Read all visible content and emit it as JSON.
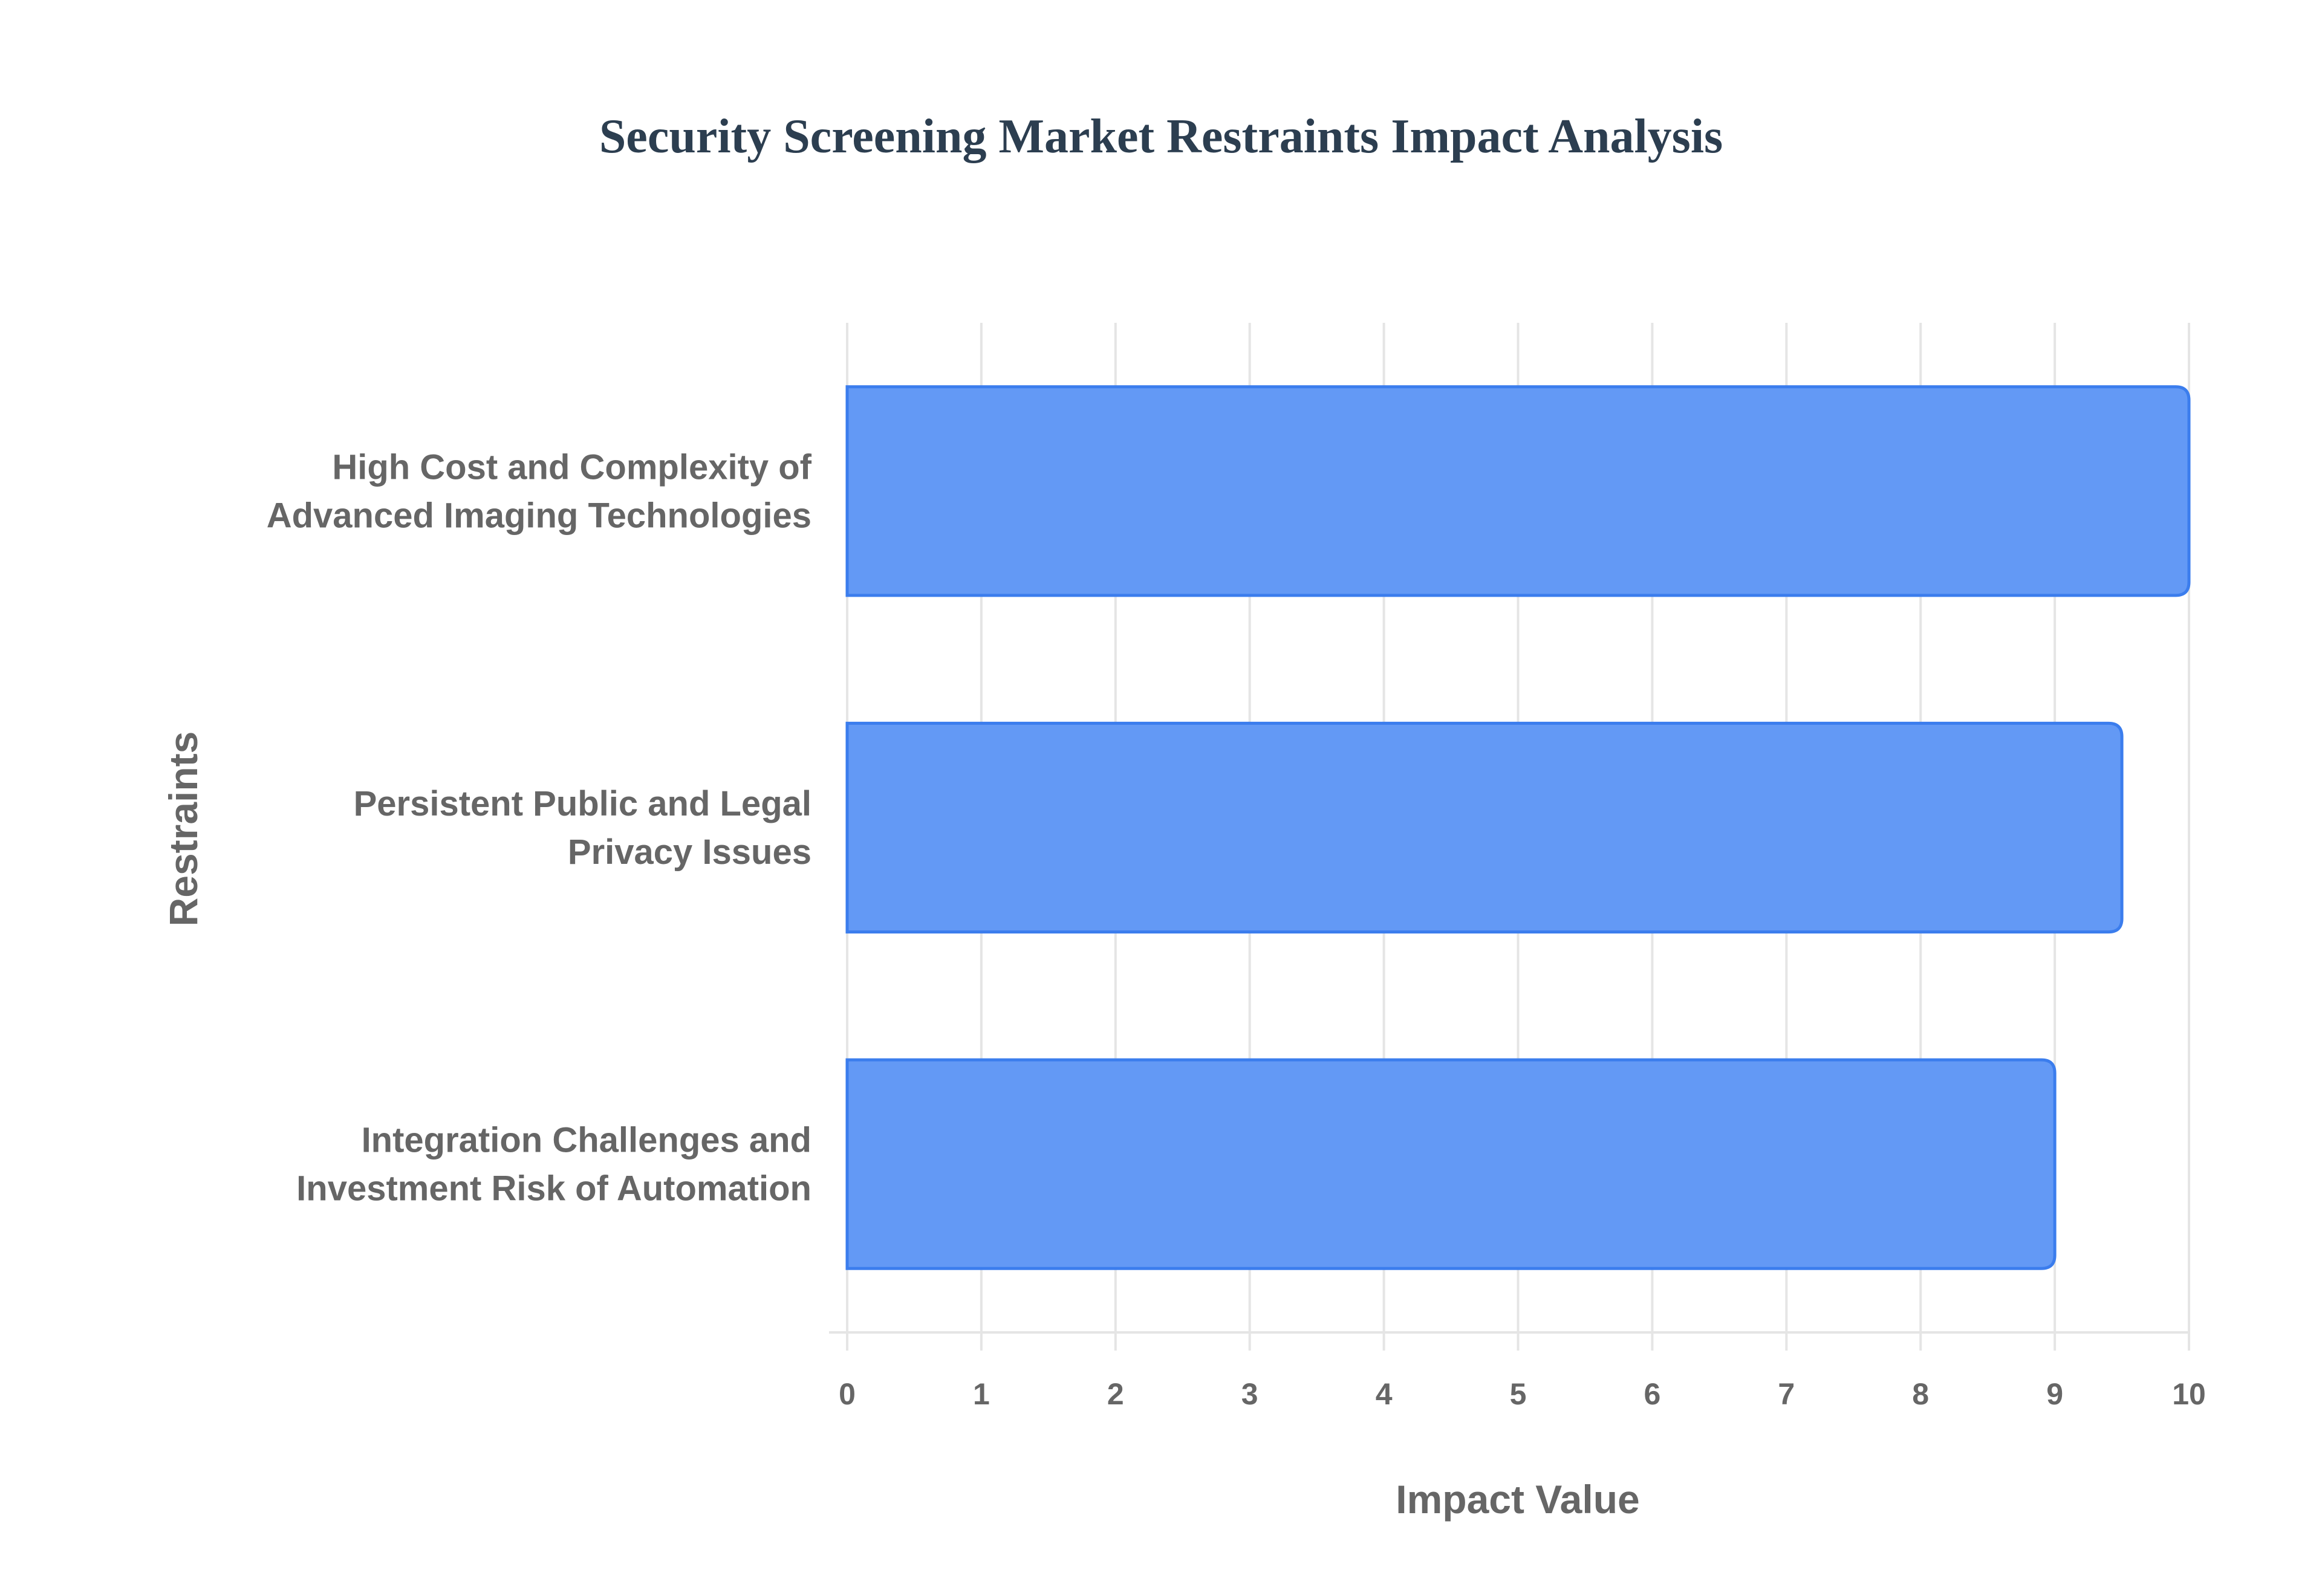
{
  "chart_data": {
    "type": "bar",
    "orientation": "horizontal",
    "title": "Security Screening Market Restraints Impact Analysis",
    "xlabel": "Impact Value",
    "ylabel": "Restraints",
    "categories": [
      [
        "High Cost and Complexity of",
        "Advanced Imaging Technologies"
      ],
      [
        "Persistent Public and Legal",
        "Privacy Issues"
      ],
      [
        "Integration Challenges and",
        "Investment Risk of Automation"
      ]
    ],
    "values": [
      10,
      9.5,
      9
    ],
    "xlim": [
      0,
      10
    ],
    "xticks": [
      "0",
      "1",
      "2",
      "3",
      "4",
      "5",
      "6",
      "7",
      "8",
      "9",
      "10"
    ],
    "grid": true,
    "legend": "none",
    "colors": {
      "bar_fill": "#6399f5",
      "bar_border": "#3b7ded",
      "grid": "#e5e5e5"
    }
  }
}
